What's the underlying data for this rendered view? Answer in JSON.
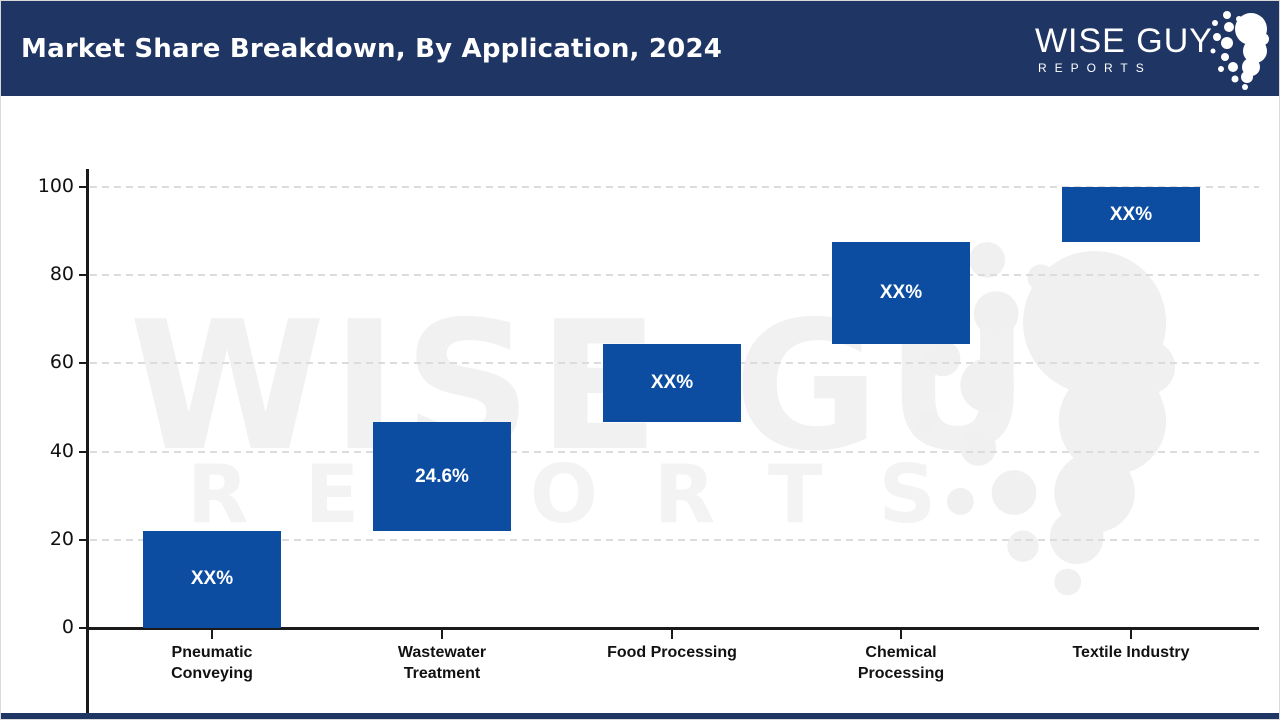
{
  "header": {
    "title": "Market Share Breakdown, By Application, 2024",
    "bg_color": "#1f3564",
    "logo": {
      "line1": "WISE GUY",
      "line2": "REPORTS"
    }
  },
  "watermark": {
    "line1": "WISE GUY",
    "line2": "REPORTS"
  },
  "chart_data": {
    "type": "bar",
    "subtype": "waterfall-stacked-segments",
    "title": "Market Share Breakdown, By Application, 2024",
    "categories": [
      "Pneumatic Conveying",
      "Wastewater Treatment",
      "Food Processing",
      "Chemical Processing",
      "Textile Industry"
    ],
    "segments": [
      {
        "category": "Pneumatic Conveying",
        "start": 0,
        "end": 22,
        "label": "XX%"
      },
      {
        "category": "Wastewater Treatment",
        "start": 22,
        "end": 46.6,
        "label": "24.6%"
      },
      {
        "category": "Food Processing",
        "start": 46.6,
        "end": 64.4,
        "label": "XX%"
      },
      {
        "category": "Chemical Processing",
        "start": 64.4,
        "end": 87.5,
        "label": "XX%"
      },
      {
        "category": "Textile Industry",
        "start": 87.5,
        "end": 100,
        "label": "XX%"
      }
    ],
    "xlabel": "",
    "ylabel": "",
    "ylim": [
      0,
      100
    ],
    "yticks": [
      0,
      20,
      40,
      60,
      80,
      100
    ],
    "grid": "horizontal-dashed",
    "legend": "none",
    "bar_color": "#0c4da2",
    "label_color": "#ffffff",
    "axis_color": "#1a1a1a",
    "gridline_color": "#dcdcdc"
  }
}
